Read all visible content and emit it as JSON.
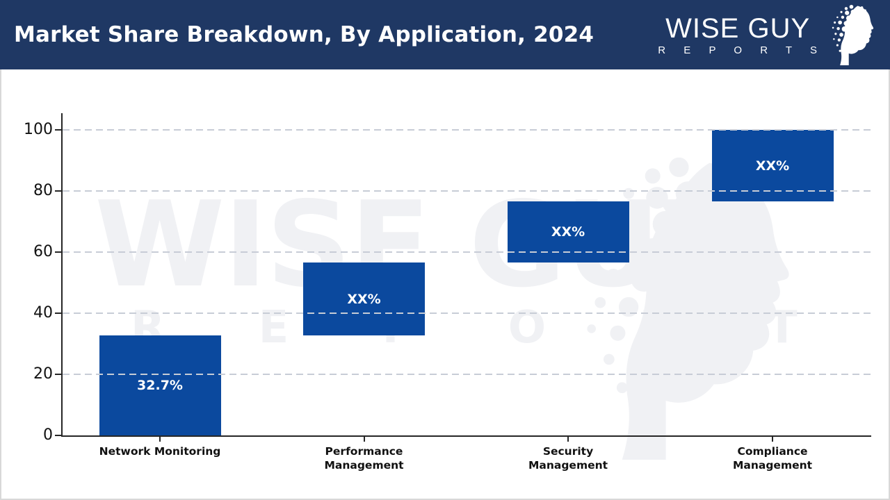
{
  "header": {
    "title": "Market Share Breakdown, By Application, 2024",
    "logo": {
      "line1": "WISE GUY",
      "line2": "R E P O R T S"
    }
  },
  "watermark": {
    "line1": "WISE GUY",
    "line2": "R E P O R T S"
  },
  "colors": {
    "header_bg": "#1f3864",
    "bar_fill": "#0b499e",
    "bar_label_text": "#ffffff",
    "axis": "#262626",
    "tick_text": "#111111",
    "gridline": "#c7ccd6",
    "watermark": "#f0f1f4",
    "content_border": "#d8d8d8"
  },
  "chart_data": {
    "type": "bar",
    "variant": "waterfall",
    "title": "Market Share Breakdown, By Application, 2024",
    "xlabel": "",
    "ylabel": "",
    "categories": [
      "Network Monitoring",
      "Performance Management",
      "Security Management",
      "Compliance Management"
    ],
    "categories_lines": [
      [
        "Network Monitoring"
      ],
      [
        "Performance",
        "Management"
      ],
      [
        "Security",
        "Management"
      ],
      [
        "Compliance",
        "Management"
      ]
    ],
    "series": [
      {
        "name": "Market share (%)",
        "segments": [
          {
            "category": "Network Monitoring",
            "start": 0,
            "end": 32.7,
            "label": "32.7%"
          },
          {
            "category": "Performance Management",
            "start": 32.7,
            "end": 56.5,
            "label": "XX%"
          },
          {
            "category": "Security Management",
            "start": 56.5,
            "end": 76.5,
            "label": "XX%"
          },
          {
            "category": "Compliance Management",
            "start": 76.5,
            "end": 100,
            "label": "XX%"
          }
        ]
      }
    ],
    "yticks": [
      0,
      20,
      40,
      60,
      80,
      100
    ],
    "ylim": [
      0,
      105
    ],
    "grid": {
      "horizontal": true,
      "style": "dashed"
    },
    "legend": null
  }
}
